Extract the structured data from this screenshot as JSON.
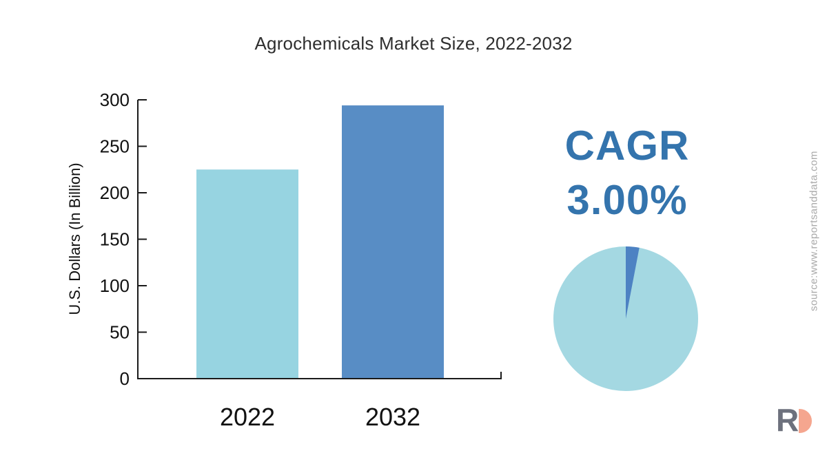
{
  "title": "Agrochemicals Market Size, 2022-2032",
  "cagr": {
    "label": "CAGR",
    "value": "3.00%"
  },
  "source_text": "source:www.reportsanddata.com",
  "logo": {
    "letter": "R",
    "d_color": "#f5a68f",
    "r_color": "#6d717d"
  },
  "colors": {
    "accent_blue": "#3474ad",
    "bar_2022": "#97d4e1",
    "bar_2032": "#588dc5",
    "pie_slice": "#4d82c3",
    "pie_body": "#a4d8e2",
    "axis": "#1a1a1a"
  },
  "chart_data": [
    {
      "type": "bar",
      "title": "Agrochemicals Market Size, 2022-2032",
      "categories": [
        "2022",
        "2032"
      ],
      "values": [
        225,
        294
      ],
      "series_colors": [
        "#97d4e1",
        "#588dc5"
      ],
      "xlabel": "",
      "ylabel": "U.S. Dollars (In Billion)",
      "ylim": [
        0,
        300
      ],
      "yticks": [
        0,
        50,
        100,
        150,
        200,
        250,
        300
      ],
      "grid": false,
      "legend": "none"
    },
    {
      "type": "pie",
      "title": "CAGR 3.00%",
      "segments": [
        {
          "name": "cagr-slice",
          "value": 3,
          "color": "#4d82c3"
        },
        {
          "name": "remainder",
          "value": 97,
          "color": "#a4d8e2"
        }
      ],
      "start_angle_deg": 0,
      "direction": "clockwise",
      "legend": "none"
    }
  ]
}
